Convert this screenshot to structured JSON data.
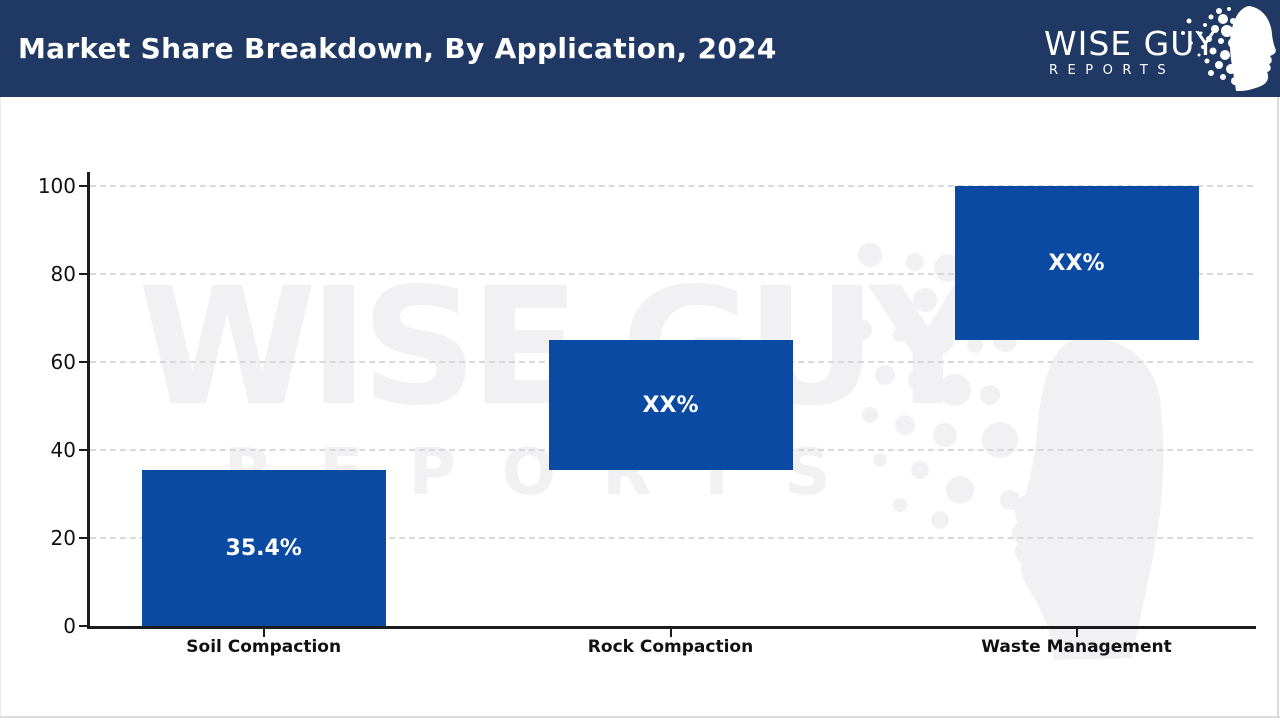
{
  "header": {
    "title": "Market Share Breakdown, By Application, 2024",
    "background_color": "#1f3864",
    "logo": {
      "line1": "WISE GUY",
      "line2": "REPORTS"
    }
  },
  "watermark": {
    "line1": "WISE GUY",
    "line2": "REPORTS"
  },
  "chart_data": {
    "type": "bar",
    "variant": "waterfall",
    "title": "Market Share Breakdown, By Application, 2024",
    "xlabel": "",
    "ylabel": "",
    "categories": [
      "Soil Compaction",
      "Rock Compaction",
      "Waste Management"
    ],
    "segments": [
      {
        "category": "Soil Compaction",
        "start": 0,
        "end": 35.4,
        "label": "35.4%"
      },
      {
        "category": "Rock Compaction",
        "start": 35.4,
        "end": 64.9,
        "label": "XX%"
      },
      {
        "category": "Waste Management",
        "start": 64.9,
        "end": 100,
        "label": "XX%"
      }
    ],
    "y_ticks": [
      0,
      20,
      40,
      60,
      80,
      100
    ],
    "ylim": [
      0,
      100
    ],
    "grid": {
      "horizontal": true,
      "style": "dashed",
      "color": "#d8d8d8"
    },
    "legend": "none",
    "bar_color": "#0b4aa2",
    "bar_label_color": "#ffffff",
    "axis_color": "#1c1c1c"
  }
}
